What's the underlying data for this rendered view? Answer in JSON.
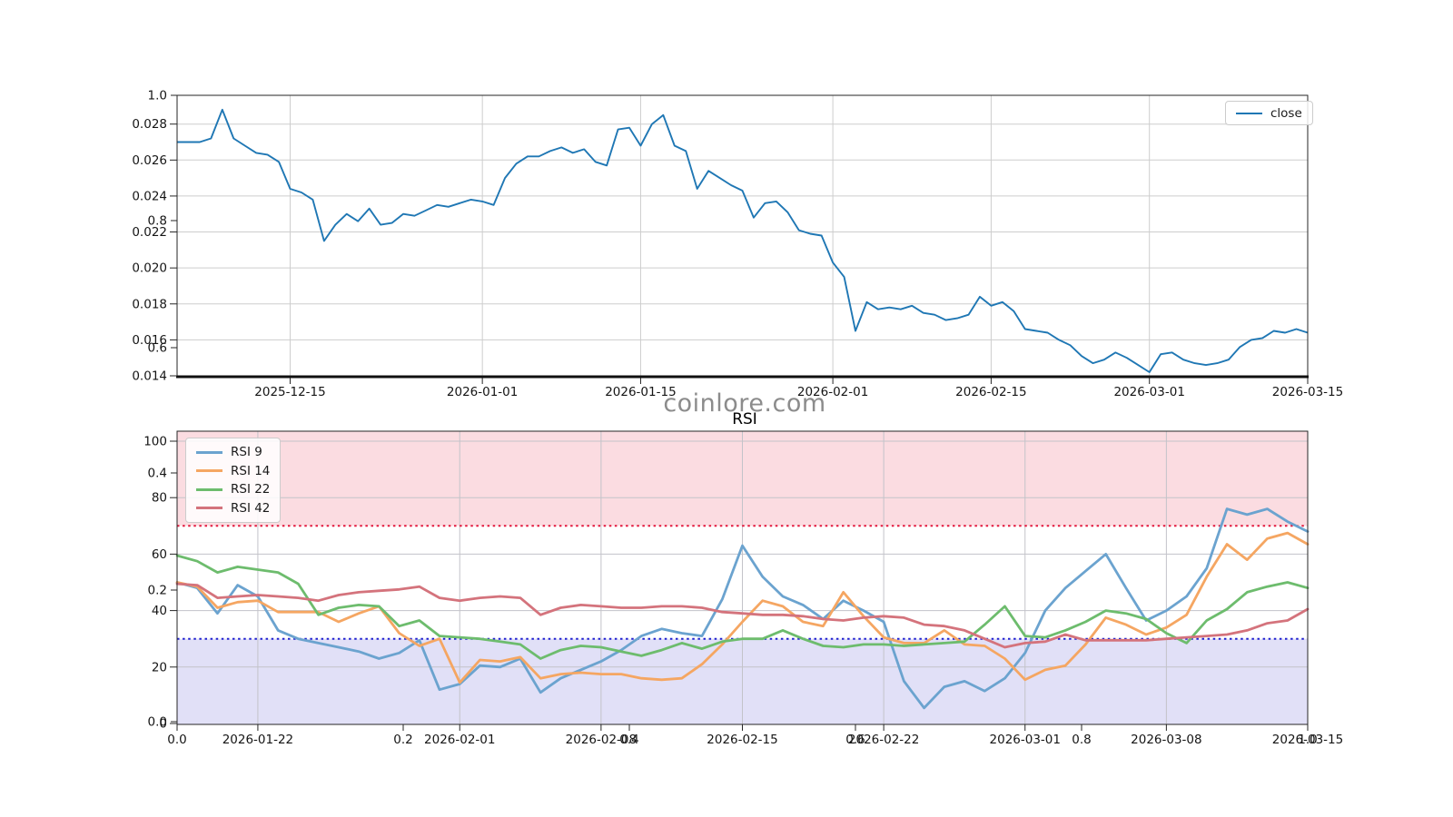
{
  "watermark": "coinlore.com",
  "phantom_axis": {
    "x_tick_labels": [
      "0.0",
      "0.2",
      "0.4",
      "0.6",
      "0.8",
      "1.0"
    ],
    "y_tick_labels": [
      "1.0",
      "0.8",
      "0.6",
      "0.4",
      "0.2",
      "0.0"
    ]
  },
  "chart_data": [
    {
      "type": "line",
      "panel": "price",
      "title": "",
      "legend": {
        "position": "upper right",
        "labels": [
          "close"
        ]
      },
      "x_start_date": "2025-12-05",
      "x_end_date": "2026-03-15",
      "frequency": "daily",
      "x_tick_labels": [
        "2025-12-15",
        "2026-01-01",
        "2026-01-15",
        "2026-02-01",
        "2026-02-15",
        "2026-03-01",
        "2026-03-15"
      ],
      "y_tick_labels": [
        "0.014",
        "0.016",
        "0.018",
        "0.020",
        "0.022",
        "0.024",
        "0.026",
        "0.028"
      ],
      "ylim": [
        0.01395,
        0.0296
      ],
      "grid": true,
      "series": [
        {
          "name": "close",
          "color": "#1f77b4",
          "values": [
            0.027,
            0.027,
            0.027,
            0.0272,
            0.0288,
            0.0272,
            0.0268,
            0.0264,
            0.0263,
            0.0259,
            0.0244,
            0.0242,
            0.0238,
            0.0215,
            0.0224,
            0.023,
            0.0226,
            0.0233,
            0.0224,
            0.0225,
            0.023,
            0.0229,
            0.0232,
            0.0235,
            0.0234,
            0.0236,
            0.0238,
            0.0237,
            0.0235,
            0.025,
            0.0258,
            0.0262,
            0.0262,
            0.0265,
            0.0267,
            0.0264,
            0.0266,
            0.0259,
            0.0257,
            0.0277,
            0.0278,
            0.0268,
            0.028,
            0.0285,
            0.0268,
            0.0265,
            0.0244,
            0.0254,
            0.025,
            0.0246,
            0.0243,
            0.0228,
            0.0236,
            0.0237,
            0.0231,
            0.0221,
            0.0219,
            0.0218,
            0.0203,
            0.0195,
            0.0165,
            0.0181,
            0.0177,
            0.0178,
            0.0177,
            0.0179,
            0.0175,
            0.0174,
            0.0171,
            0.0172,
            0.0174,
            0.0184,
            0.0179,
            0.0181,
            0.0176,
            0.0166,
            0.0165,
            0.0164,
            0.016,
            0.0157,
            0.0151,
            0.0147,
            0.0149,
            0.0153,
            0.015,
            0.0146,
            0.0142,
            0.0152,
            0.0153,
            0.0149,
            0.0147,
            0.0146,
            0.0147,
            0.0149,
            0.0156,
            0.016,
            0.0161,
            0.0165,
            0.0164,
            0.0166,
            0.0164
          ]
        }
      ]
    },
    {
      "type": "line",
      "panel": "rsi",
      "title": "RSI",
      "legend": {
        "position": "upper left",
        "labels": [
          "RSI 9",
          "RSI 14",
          "RSI 22",
          "RSI 42"
        ]
      },
      "x_start_date": "2026-01-18",
      "x_end_date": "2026-03-15",
      "frequency": "daily",
      "x_tick_labels": [
        "2026-01-22",
        "2026-02-01",
        "2026-02-08",
        "2026-02-15",
        "2026-02-22",
        "2026-03-01",
        "2026-03-08",
        "2026-03-15"
      ],
      "y_tick_labels": [
        "0",
        "20",
        "40",
        "60",
        "80",
        "100"
      ],
      "ylim": [
        0,
        100
      ],
      "grid": true,
      "overbought_level": 70,
      "oversold_level": 30,
      "overbought_band_color": "#fbdce1",
      "oversold_band_color": "#e1e0f7",
      "overbought_line_color": "#e3183d",
      "oversold_line_color": "#2020cf",
      "series": [
        {
          "name": "RSI 9",
          "color": "#6ba3cf",
          "values": [
            50,
            48,
            39,
            49,
            45,
            33,
            30,
            28.5,
            27,
            25.5,
            23,
            25,
            29.5,
            12,
            14,
            20.5,
            20,
            23,
            11,
            16,
            19,
            22,
            26,
            31,
            33.5,
            32,
            31,
            44,
            63,
            52,
            45,
            42,
            37,
            43.5,
            40,
            36,
            15,
            5.5,
            13,
            15,
            11.5,
            16,
            25,
            40,
            48,
            54,
            60,
            48,
            36.5,
            40,
            45,
            55,
            76,
            74,
            76,
            71.5,
            68
          ]
        },
        {
          "name": "RSI 14",
          "color": "#f5a662",
          "values": [
            50,
            48.5,
            41,
            43,
            43.5,
            39.5,
            39.5,
            39.5,
            36,
            39,
            41.5,
            32,
            27.5,
            30,
            14.5,
            22.5,
            22,
            23.5,
            16,
            17.5,
            18,
            17.5,
            17.5,
            16,
            15.5,
            16,
            21,
            28,
            36,
            43.5,
            41.5,
            36,
            34.5,
            46.5,
            38,
            30.5,
            28.5,
            28.5,
            33,
            28,
            27.5,
            23,
            15.5,
            19,
            20.5,
            28,
            37.5,
            35,
            31.5,
            34,
            38.5,
            52,
            63.5,
            58,
            65.5,
            67.5,
            63.5
          ]
        },
        {
          "name": "RSI 22",
          "color": "#6dbc6d",
          "values": [
            59.5,
            57.5,
            53.5,
            55.5,
            54.5,
            53.5,
            49.5,
            38.5,
            41,
            42,
            41.5,
            34.5,
            36.5,
            31,
            30.5,
            30,
            29,
            28,
            23,
            26,
            27.5,
            27,
            25.5,
            24,
            26,
            28.5,
            26.5,
            29,
            30,
            30,
            33,
            30,
            27.5,
            27,
            28,
            28,
            27.5,
            28,
            28.5,
            29,
            35,
            41.5,
            31,
            30.5,
            33,
            36,
            40,
            39,
            37,
            32,
            28.5,
            36.5,
            40.5,
            46.5,
            48.5,
            50,
            48
          ]
        },
        {
          "name": "RSI 42",
          "color": "#d4737c",
          "values": [
            49.5,
            49,
            44.5,
            45,
            45.5,
            45,
            44.5,
            43.5,
            45.5,
            46.5,
            47,
            47.5,
            48.5,
            44.5,
            43.5,
            44.5,
            45,
            44.5,
            38.5,
            41,
            42,
            41.5,
            41,
            41,
            41.5,
            41.5,
            41,
            39.5,
            39,
            38.5,
            38.5,
            38,
            37,
            36.5,
            37.5,
            38,
            37.5,
            35,
            34.5,
            33,
            30,
            27,
            28.5,
            29,
            31.5,
            29.5,
            29.5,
            29.5,
            29.5,
            30,
            30.5,
            31,
            31.5,
            33,
            35.5,
            36.5,
            40.5
          ]
        }
      ]
    }
  ]
}
